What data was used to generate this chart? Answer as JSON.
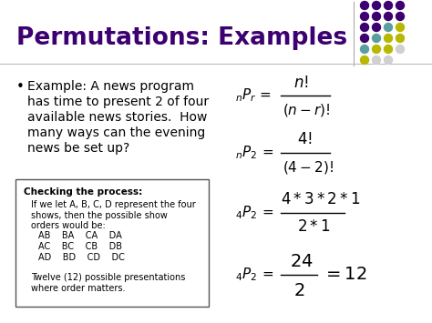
{
  "title": "Permutations: Examples",
  "title_color": "#3D0070",
  "bg_color": "#FFFFFF",
  "slide_bg": "#E8E8E8",
  "bullet_text_lines": [
    "Example: A news program",
    "has time to present 2 of four",
    "available news stories.  How",
    "many ways can the evening",
    "news be set up?"
  ],
  "box_title": "Checking the process:",
  "box_lines": [
    "If we let A, B, C, D represent the four",
    "shows, then the possible show",
    "orders would be:",
    "AB    BA    CA    DA",
    "AC    BC    CB    DB",
    "AD    BD    CD    DC",
    "",
    "Twelve (12) possible presentations",
    "where order matters."
  ],
  "dot_layout": [
    [
      "#3D0070",
      "#3D0070",
      "#3D0070",
      "#3D0070"
    ],
    [
      "#3D0070",
      "#3D0070",
      "#3D0070",
      "#3D0070"
    ],
    [
      "#3D0070",
      "#3D0070",
      "#5B9EA0",
      "#B8B800"
    ],
    [
      "#3D0070",
      "#5B9EA0",
      "#B8B800",
      "#B8B800"
    ],
    [
      "#5B9EA0",
      "#B8B800",
      "#B8B800",
      "#D0D0D0"
    ],
    [
      "#B8B800",
      "#D0D0D0",
      "#D0D0D0",
      ""
    ]
  ]
}
